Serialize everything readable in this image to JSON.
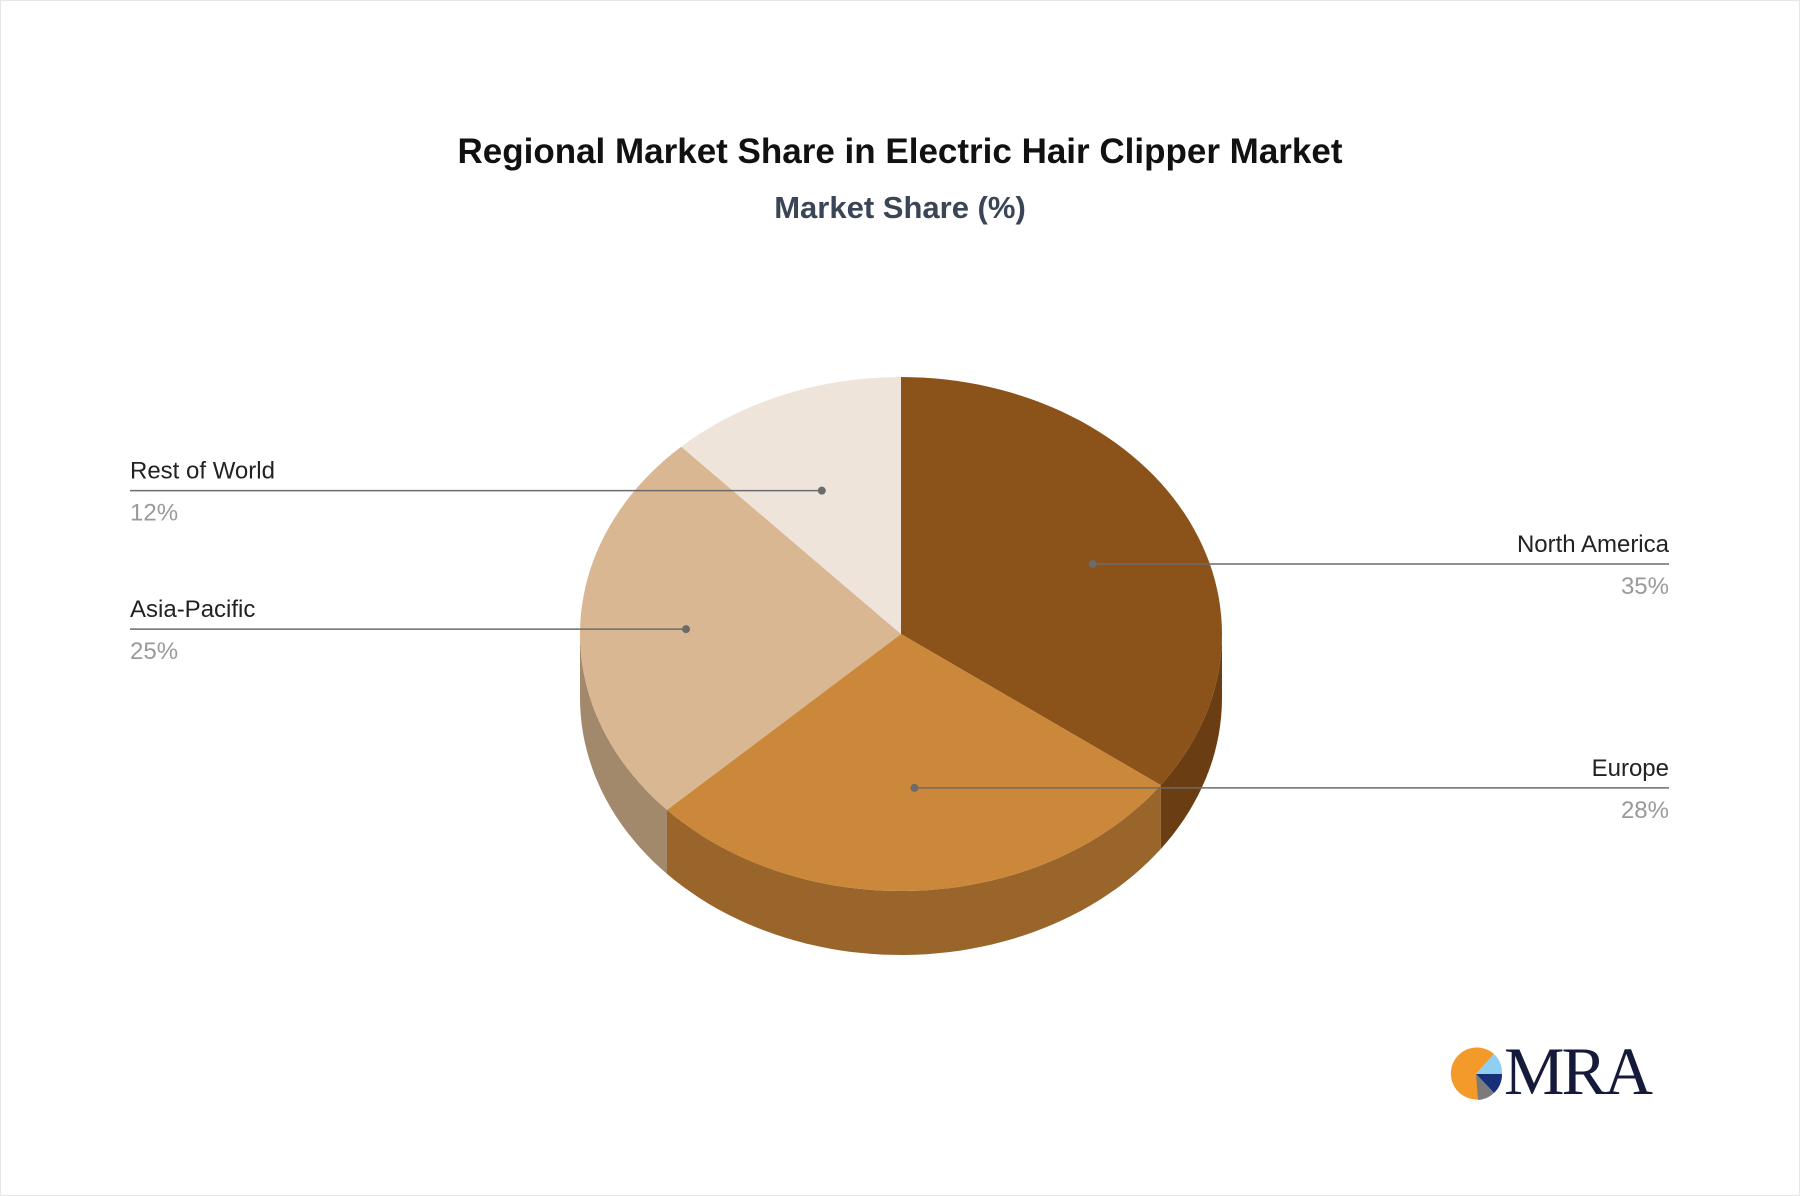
{
  "chart_data": {
    "type": "pie",
    "style": "3d",
    "title": "Regional Market Share in Electric Hair Clipper Market",
    "subtitle": "Market Share (%)",
    "slices": [
      {
        "label": "North America",
        "value": 35,
        "value_label": "35%",
        "color": "#8B5319",
        "side_color": "#6A3E12"
      },
      {
        "label": "Europe",
        "value": 28,
        "value_label": "28%",
        "color": "#CB883A",
        "side_color": "#99652A"
      },
      {
        "label": "Asia-Pacific",
        "value": 25,
        "value_label": "25%",
        "color": "#D8B792",
        "side_color": "#A3896C"
      },
      {
        "label": "Rest of World",
        "value": 12,
        "value_label": "12%",
        "color": "#EEE4DA",
        "side_color": "#BDB3A9"
      }
    ]
  },
  "logo": {
    "text": "MRA"
  }
}
